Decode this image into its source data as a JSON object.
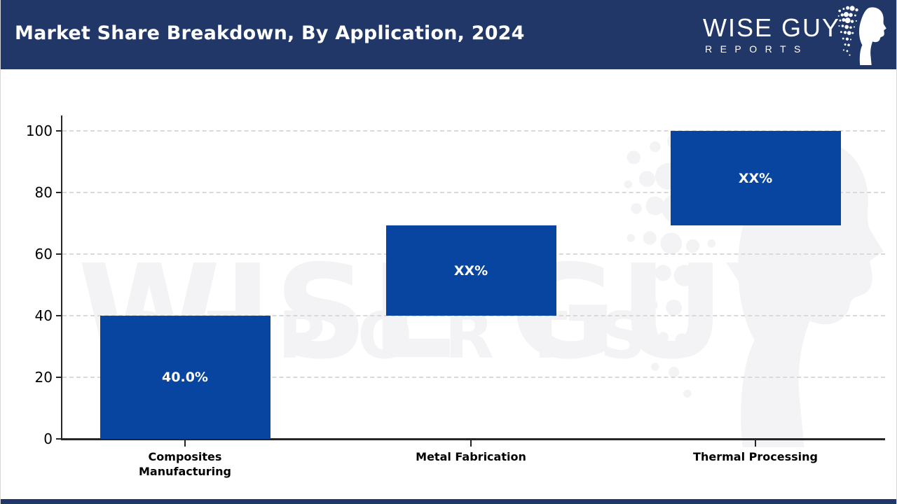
{
  "header": {
    "title": "Market Share Breakdown, By Application, 2024",
    "logo": {
      "wordmark": "WISE GUY",
      "subtext": "REPORTS"
    }
  },
  "watermark": {
    "line1": "WISE GUY",
    "line2": "REPORTS"
  },
  "chart_data": {
    "type": "bar",
    "subtype": "floating-segment-waterfall",
    "title": "Market Share Breakdown, By Application, 2024",
    "categories": [
      "Composites Manufacturing",
      "Metal Fabrication",
      "Thermal Processing"
    ],
    "segments": [
      {
        "category": "Composites Manufacturing",
        "start": 0,
        "end": 40,
        "label": "40.0%"
      },
      {
        "category": "Metal Fabrication",
        "start": 40,
        "end": 69.3,
        "label": "XX%"
      },
      {
        "category": "Thermal Processing",
        "start": 69.3,
        "end": 100,
        "label": "XX%"
      }
    ],
    "xlabel": "",
    "ylabel": "",
    "ylim": [
      0,
      100
    ],
    "yticks": [
      0,
      20,
      40,
      60,
      80,
      100
    ],
    "grid": "horizontal-dashed",
    "legend": "none",
    "bar_color": "#0745a0",
    "bar_label_color": "#ffffff"
  },
  "colors": {
    "header_bg": "#203768",
    "footer_bg": "#203768",
    "bar": "#0745a0",
    "grid": "#d9d9d9",
    "axis": "#262626",
    "watermark": "#f3f3f5",
    "title_text": "#ffffff"
  }
}
